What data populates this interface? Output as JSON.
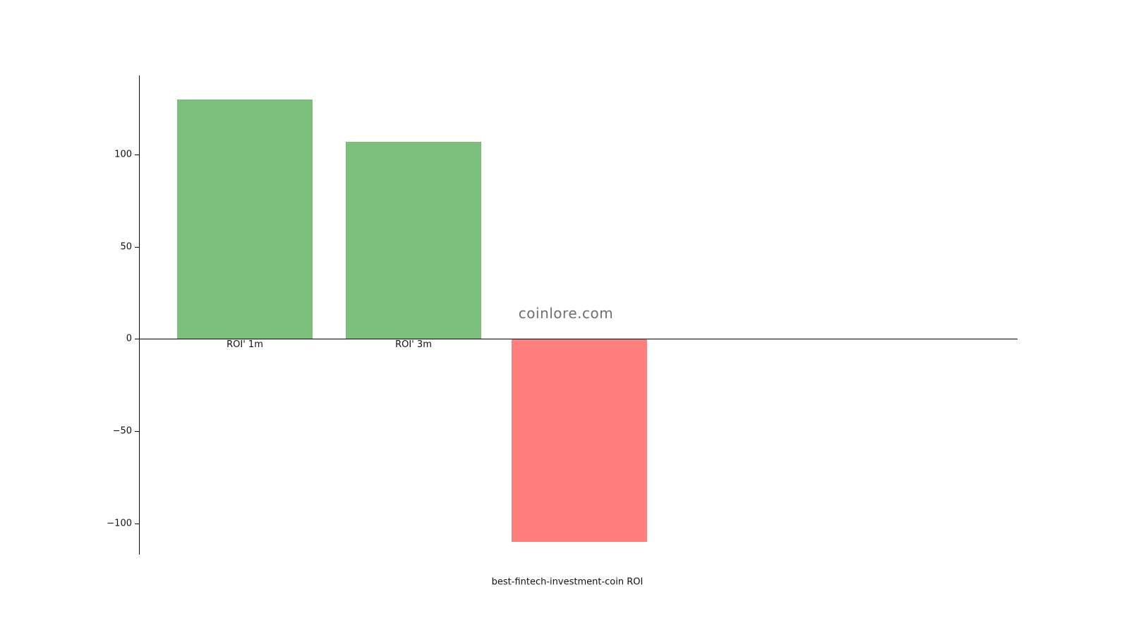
{
  "page": {
    "background": "#ffffff"
  },
  "watermark": {
    "text": "coinlore.com",
    "color": "#6f6f6f"
  },
  "chart_data": {
    "type": "bar",
    "title": "best-fintech-investment-coin ROI",
    "categories": [
      "ROI' 1m",
      "ROI' 3m",
      ""
    ],
    "values": [
      130,
      107,
      -110
    ],
    "bar_colors": [
      "#7cbf7d",
      "#7cbf7d",
      "#ff7f7f"
    ],
    "positive_color": "#7cbf7d",
    "negative_color": "#ff7f7f",
    "yticks": [
      {
        "value": 100,
        "label": "100"
      },
      {
        "value": 50,
        "label": "50"
      },
      {
        "value": 0,
        "label": "0"
      },
      {
        "value": -50,
        "label": "−50"
      },
      {
        "value": -100,
        "label": "−100"
      }
    ],
    "ylim": [
      -117,
      143
    ],
    "xlabel": "",
    "ylabel": "",
    "grid": false,
    "legend": "none"
  }
}
